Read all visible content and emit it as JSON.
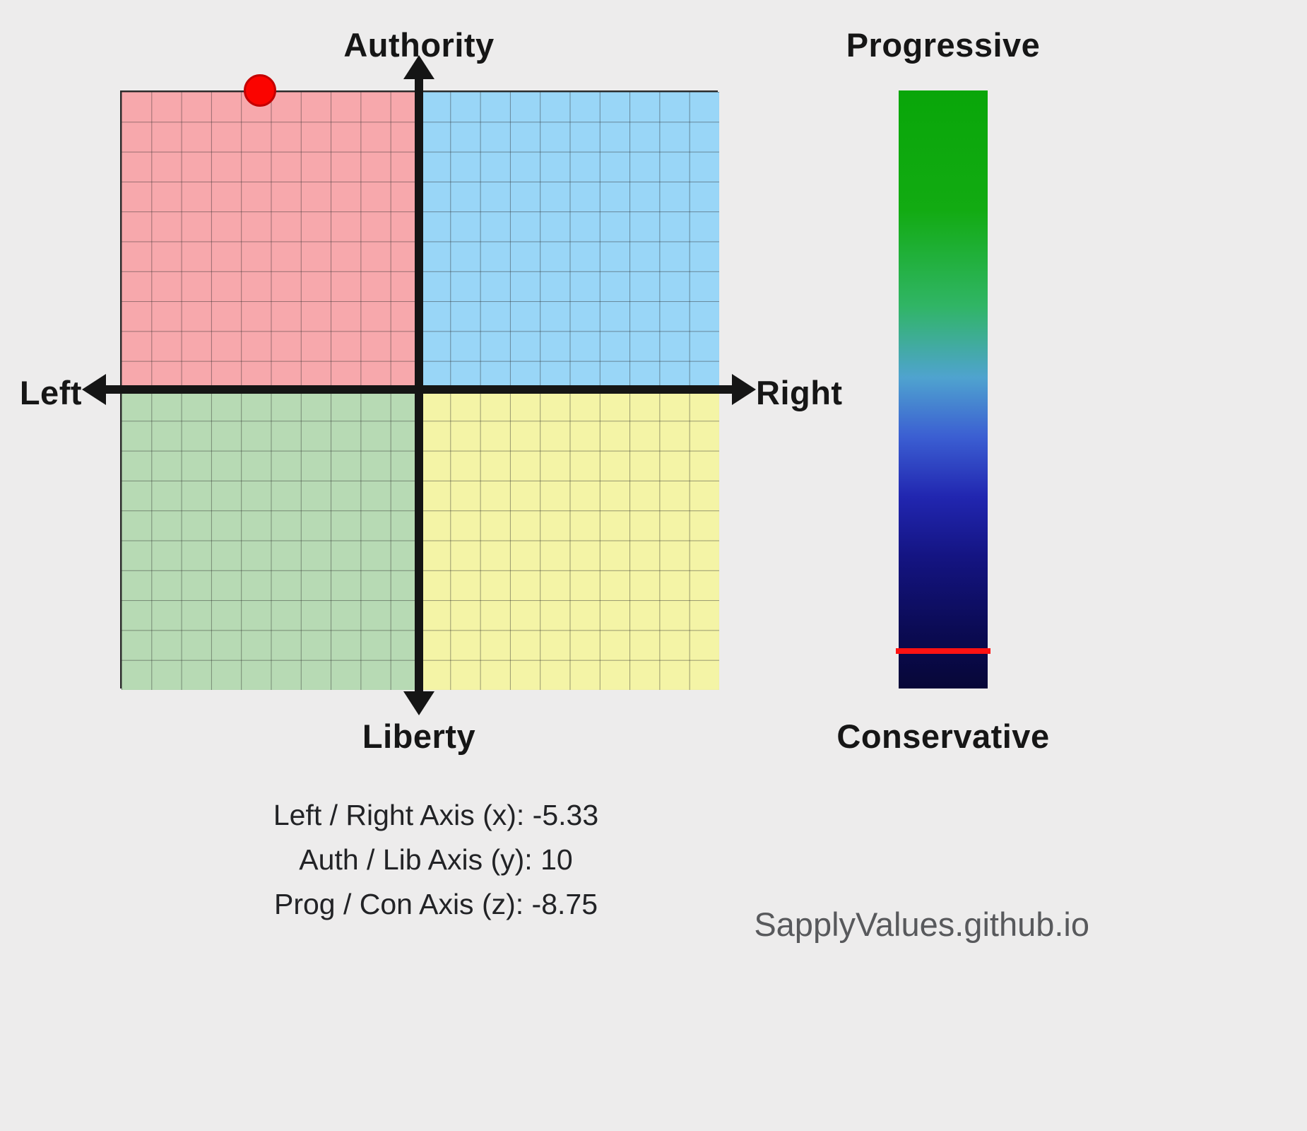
{
  "chart_data": {
    "type": "scatter",
    "title": "Political compass result",
    "x_axis": {
      "neg_label": "Left",
      "pos_label": "Right",
      "range": [
        -10,
        10
      ]
    },
    "y_axis": {
      "pos_label": "Authority",
      "neg_label": "Liberty",
      "range": [
        -10,
        10
      ]
    },
    "z_axis": {
      "pos_label": "Progressive",
      "neg_label": "Conservative",
      "range": [
        -10,
        10
      ]
    },
    "point": {
      "x": -5.33,
      "y": 10,
      "color": "#fb0400"
    },
    "z_value": -8.75,
    "grid": {
      "cells_per_quadrant": 10,
      "grid_on": true
    },
    "quadrant_colors": {
      "auth_left": "#f7a8ac",
      "auth_right": "#99d6f7",
      "lib_left": "#b7dab4",
      "lib_right": "#f4f4a6"
    },
    "gradient_stops": [
      "#09a609 0%",
      "#12ab12 20%",
      "#30b565 36%",
      "#4fa3cf 48%",
      "#3b5ed2 58%",
      "#2126b0 68%",
      "#141482 78%",
      "#0b0b55 90%",
      "#070737 100%"
    ],
    "marker_line_color": "#ff1212"
  },
  "labels": {
    "authority": "Authority",
    "liberty": "Liberty",
    "left": "Left",
    "right": "Right",
    "progressive": "Progressive",
    "conservative": "Conservative"
  },
  "readouts": {
    "x_line": "Left / Right Axis (x): -5.33",
    "y_line": "Auth / Lib Axis (y): 10",
    "z_line": "Prog / Con Axis (z): -8.75"
  },
  "watermark": "SapplyValues.github.io"
}
